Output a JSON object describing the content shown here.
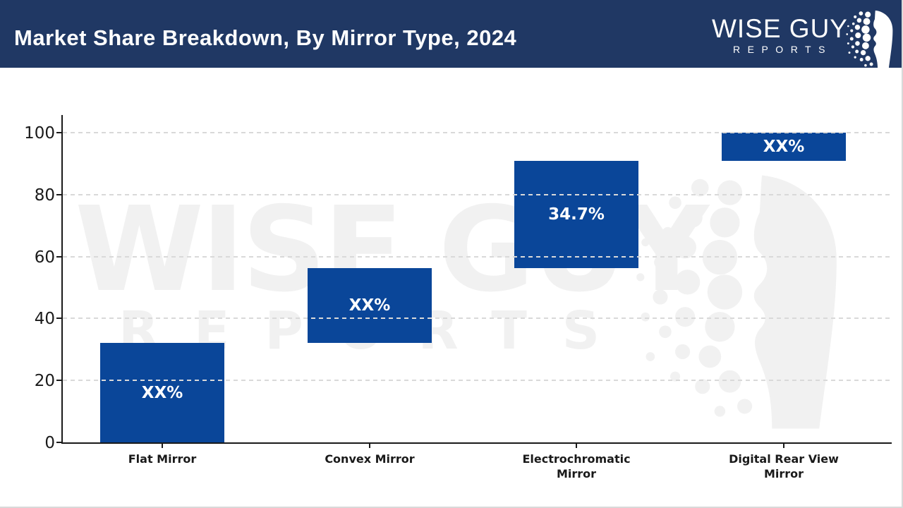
{
  "header": {
    "title": "Market Share Breakdown, By Mirror Type, 2024",
    "logo": {
      "name_line": "WISE GUY",
      "reports_line": "REPORTS"
    }
  },
  "watermark": {
    "name_line": "WISE GUY",
    "reports_line": "REPORTS"
  },
  "chart_data": {
    "type": "bar",
    "subtype": "floating-waterfall",
    "title": "Market Share Breakdown, By Mirror Type, 2024",
    "categories": [
      "Flat Mirror",
      "Convex Mirror",
      "Electrochromatic Mirror",
      "Digital Rear View Mirror"
    ],
    "bars": [
      {
        "category": "Flat Mirror",
        "start": 0,
        "end": 32.1,
        "height": 32.1,
        "value_label": "XX%"
      },
      {
        "category": "Convex Mirror",
        "start": 32.1,
        "end": 56.2,
        "height": 24.1,
        "value_label": "XX%"
      },
      {
        "category": "Electrochromatic Mirror",
        "start": 56.2,
        "end": 90.9,
        "height": 34.7,
        "value_label": "34.7%"
      },
      {
        "category": "Digital Rear View Mirror",
        "start": 90.9,
        "end": 100,
        "height": 9.1,
        "value_label": "XX%"
      }
    ],
    "yticks": [
      "0",
      "20",
      "40",
      "60",
      "80",
      "100"
    ],
    "ylim": [
      0,
      105.7
    ],
    "xlabel": "",
    "ylabel": "",
    "grid": "horizontal dashed, drawn above bars",
    "legend_position": "none",
    "bar_color": "#0a4699",
    "value_label_color": "#ffffff"
  },
  "colors": {
    "header_bg": "#203864",
    "bar_blue": "#0a4699",
    "gridline": "#d9d9d9",
    "axis": "#1a1a1a",
    "watermark_gray": "#f1f1f1",
    "page_bg": "#ffffff"
  }
}
